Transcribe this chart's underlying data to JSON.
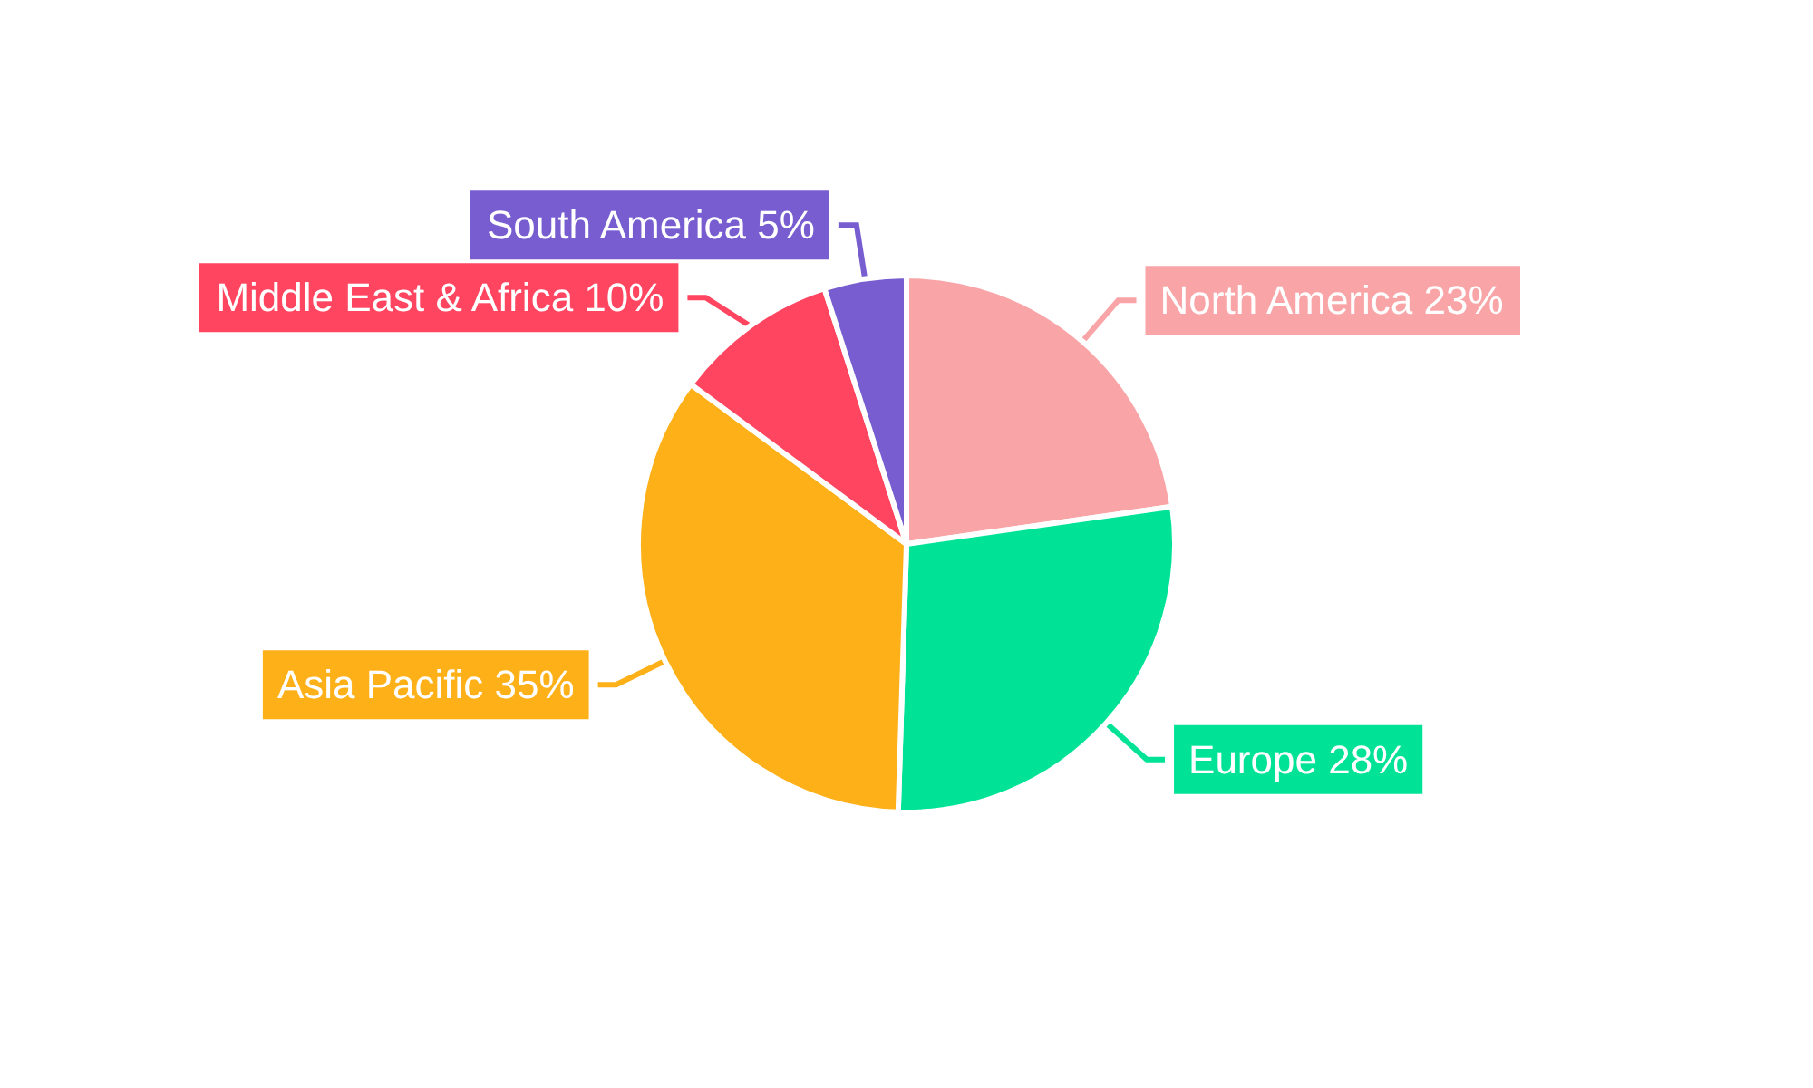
{
  "chart_data": {
    "type": "pie",
    "categories": [
      "North America",
      "Europe",
      "Asia Pacific",
      "Middle East & Africa",
      "South America"
    ],
    "values": [
      23,
      28,
      35,
      10,
      5
    ],
    "value_labels": [
      "23%",
      "28%",
      "35%",
      "10%",
      "5%"
    ],
    "colors": [
      "#f9a5a7",
      "#00e396",
      "#feb019",
      "#ff4560",
      "#775dd0"
    ]
  }
}
